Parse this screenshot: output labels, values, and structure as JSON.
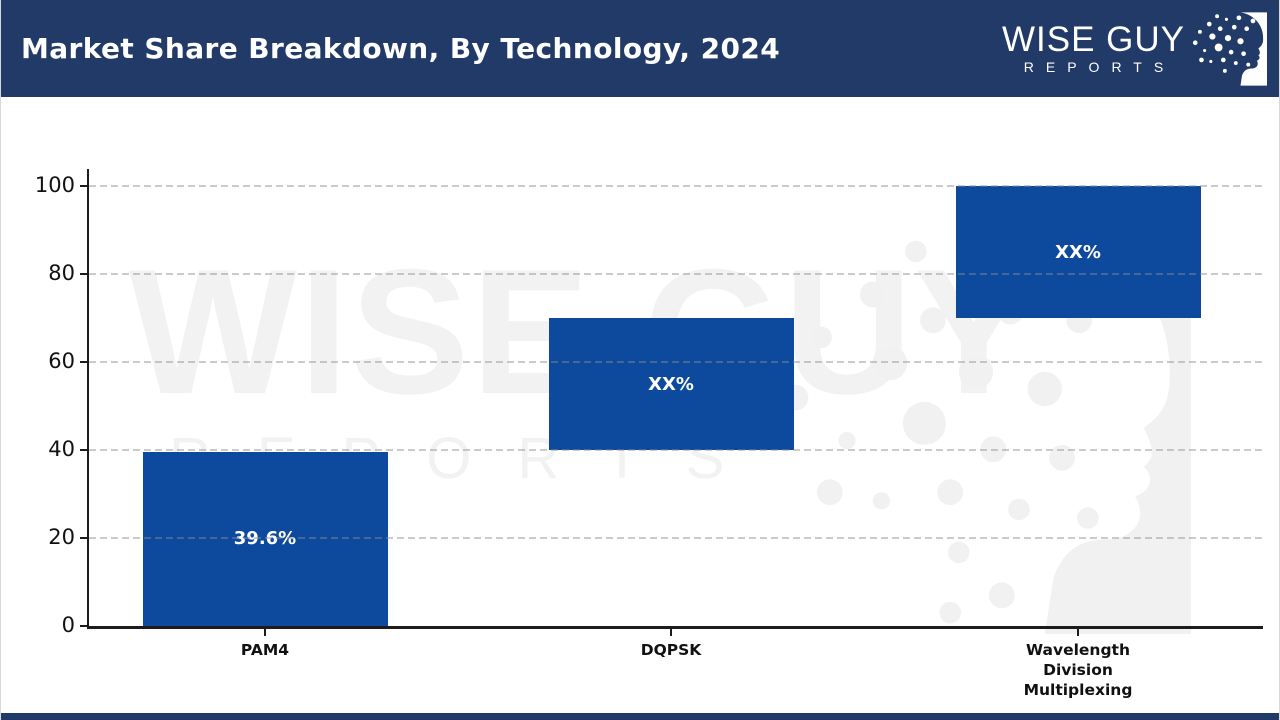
{
  "header": {
    "title": "Market Share Breakdown, By Technology, 2024",
    "logo": {
      "line1": "WISE GUY",
      "line2": "REPORTS"
    }
  },
  "watermark": {
    "line1": "WISE GUY",
    "line2": "REPORTS"
  },
  "chart_data": {
    "type": "bar",
    "variant": "floating-range-bars",
    "title": "Market Share Breakdown, By Technology, 2024",
    "categories": [
      "PAM4",
      "DQPSK",
      "Wavelength\nDivision\nMultiplexing"
    ],
    "series": [
      {
        "name": "Market share (%)",
        "ranges": [
          [
            0,
            39.6
          ],
          [
            40,
            70
          ],
          [
            70,
            100
          ]
        ],
        "labels": [
          "39.6%",
          "XX%",
          "XX%"
        ]
      }
    ],
    "ylim": [
      0,
      100
    ],
    "yticks": [
      0,
      20,
      40,
      60,
      80,
      100
    ],
    "xlabel": "",
    "ylabel": "",
    "grid": "horizontal-dashed",
    "legend": "none",
    "bar_color": "#0d4a9e"
  },
  "colors": {
    "header_bg": "#213a68",
    "footer_bg": "#213a68",
    "bar": "#0d4a9e",
    "bar_label": "#ffffff",
    "axis": "#1c1c1c",
    "grid": "#c9c9c9",
    "watermark": "#f2f2f2",
    "page_border": "#d8d8d8"
  }
}
